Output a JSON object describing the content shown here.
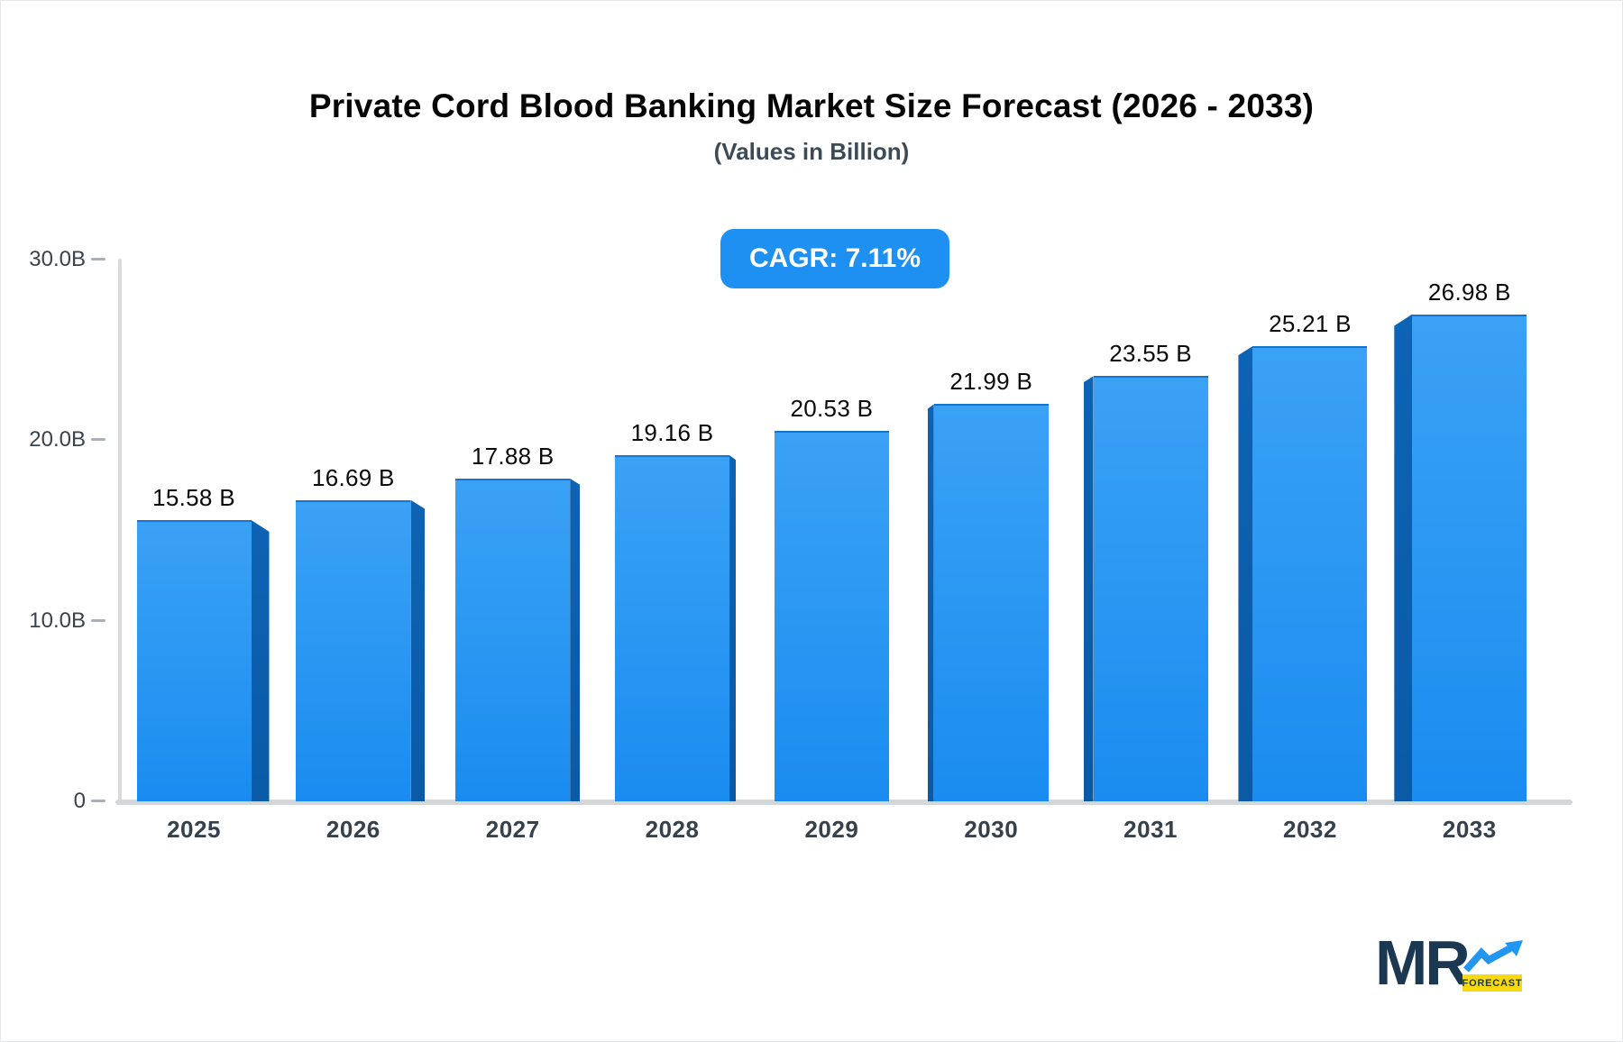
{
  "header": {
    "title": "Private Cord Blood Banking Market Size Forecast (2026 - 2033)",
    "subtitle": "(Values in Billion)"
  },
  "badge": {
    "label": "CAGR: 7.11%"
  },
  "chart_data": {
    "type": "bar",
    "title": "Private Cord Blood Banking Market Size Forecast (2026 - 2033)",
    "subtitle": "(Values in Billion)",
    "categories": [
      "2025",
      "2026",
      "2027",
      "2028",
      "2029",
      "2030",
      "2031",
      "2032",
      "2033"
    ],
    "values": [
      15.58,
      16.69,
      17.88,
      19.16,
      20.53,
      21.99,
      23.55,
      25.21,
      26.98
    ],
    "bar_labels": [
      "15.58 B",
      "16.69 B",
      "17.88 B",
      "19.16 B",
      "20.53 B",
      "21.99 B",
      "23.55 B",
      "25.21 B",
      "26.98 B"
    ],
    "xlabel": "",
    "ylabel": "",
    "ylim": [
      0,
      30
    ],
    "y_ticks": [
      {
        "label": "30.0B",
        "value": 30
      },
      {
        "label": "20.0B",
        "value": 20
      },
      {
        "label": "10.0B",
        "value": 10
      },
      {
        "label": "0",
        "value": 0
      }
    ],
    "grid": false,
    "legend": false,
    "annotation": "CAGR: 7.11%",
    "bar_style": "3d-perspective"
  },
  "logo": {
    "text": "MR",
    "sub_label": "FORECAST",
    "icon": "trend-up-arrow-icon"
  },
  "colors": {
    "bar_face_top": "#3aa2f5",
    "bar_face_bottom": "#1a8cf0",
    "bar_side": "#0d63b4",
    "bar_side_dark": "#0a5aa6",
    "badge_bg": "#1e90f2",
    "badge_text": "#ffffff",
    "axis_line": "#d8dadd",
    "baseline": "#d4d7da",
    "tick": "#a9b0b8",
    "y_label": "#3a434d",
    "x_label": "#36414c",
    "value_label": "#0a0a0b",
    "title": "#050506",
    "subtitle": "#3d4b57",
    "logo_navy": "#1b3752",
    "logo_yellow": "#f8d90f",
    "logo_arrow": "#2196f3"
  }
}
